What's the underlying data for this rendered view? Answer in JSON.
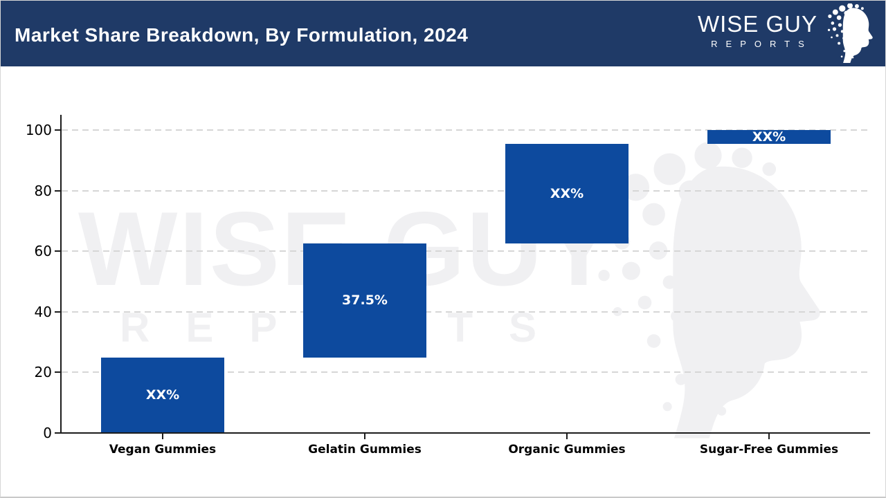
{
  "header": {
    "title": "Market Share Breakdown, By Formulation, 2024",
    "bg_color": "#1f3a67",
    "logo": {
      "line1": "WISE GUY",
      "line2": "REPORTS"
    }
  },
  "watermark": {
    "line1": "WISE GUY",
    "line2": "REPORTS"
  },
  "chart_data": {
    "type": "bar",
    "subtype": "floating-waterfall",
    "title": "Market Share Breakdown, By Formulation, 2024",
    "categories": [
      "Vegan Gummies",
      "Gelatin Gummies",
      "Organic Gummies",
      "Sugar-Free Gummies"
    ],
    "segments": [
      {
        "category": "Vegan Gummies",
        "start": 0,
        "end": 25,
        "value": 25,
        "label": "XX%"
      },
      {
        "category": "Gelatin Gummies",
        "start": 25,
        "end": 62.5,
        "value": 37.5,
        "label": "37.5%"
      },
      {
        "category": "Organic Gummies",
        "start": 62.5,
        "end": 95.5,
        "value": 33,
        "label": "XX%"
      },
      {
        "category": "Sugar-Free Gummies",
        "start": 95.5,
        "end": 100,
        "value": 4.5,
        "label": "XX%"
      }
    ],
    "y_ticks": [
      0,
      20,
      40,
      60,
      80,
      100
    ],
    "ylim": [
      0,
      105
    ],
    "xlabel": "",
    "ylabel": "",
    "grid": "horizontal-dashed",
    "legend": "none",
    "bar_color": "#0d4a9e",
    "bar_label_color": "#ffffff",
    "grid_color": "#d6d6d6",
    "axis_color": "#1c1c1c"
  }
}
